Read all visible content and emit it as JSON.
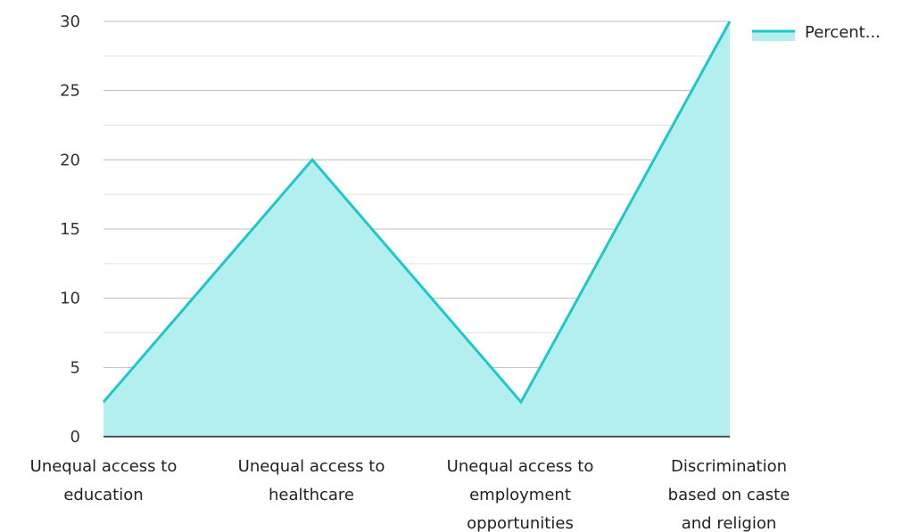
{
  "chart_data": {
    "type": "area",
    "categories": [
      [
        "Unequal access to",
        "education"
      ],
      [
        "Unequal access to",
        "healthcare"
      ],
      [
        "Unequal access to",
        "employment",
        "opportunities"
      ],
      [
        "Discrimination",
        "based on caste",
        "and religion"
      ]
    ],
    "series": [
      {
        "name": "Percent...",
        "values": [
          2.5,
          20,
          2.5,
          30
        ]
      }
    ],
    "ylim": [
      0,
      30
    ],
    "yticks": [
      0,
      5,
      10,
      15,
      20,
      25,
      30
    ],
    "grid": true,
    "legend_position": "top-right",
    "line_color": "#1fc8c8",
    "fill_color": "#b2efee",
    "grid_color": "#cccccc",
    "axis_color": "#222222"
  }
}
